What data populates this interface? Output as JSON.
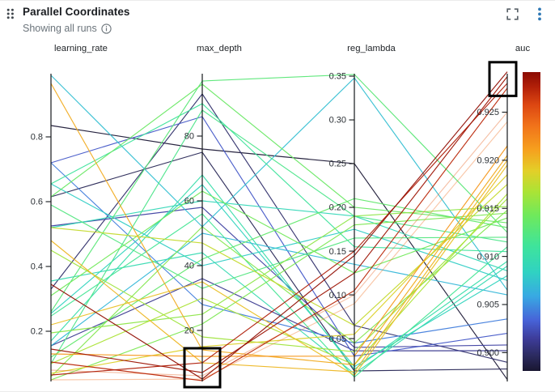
{
  "panel": {
    "title": "Parallel Coordinates",
    "subtitle": "Showing all runs",
    "menu_color": "#2e78b5",
    "icon_names": [
      "drag-handle-icon",
      "info-icon",
      "fullscreen-icon",
      "kebab-menu-icon"
    ]
  },
  "chart_data": {
    "type": "line",
    "variant": "parallel_coordinates",
    "title": "Parallel Coordinates",
    "subtitle": "Showing all runs",
    "grid": false,
    "legend": "color-bar-right",
    "axes": [
      {
        "name": "learning_rate",
        "domain": [
          0.045,
          0.995
        ],
        "ticks": [
          {
            "v": 0.8,
            "label": "0.8"
          },
          {
            "v": 0.6,
            "label": "0.6"
          },
          {
            "v": 0.4,
            "label": "0.4"
          },
          {
            "v": 0.2,
            "label": "0.2"
          }
        ]
      },
      {
        "name": "max_depth",
        "domain": [
          4.25,
          99.25
        ],
        "ticks": [
          {
            "v": 80,
            "label": "80"
          },
          {
            "v": 60,
            "label": "60"
          },
          {
            "v": 40,
            "label": "40"
          },
          {
            "v": 20,
            "label": "20"
          }
        ]
      },
      {
        "name": "reg_lambda",
        "domain": [
          0.001,
          0.3528
        ],
        "ticks": [
          {
            "v": 0.35,
            "label": "0.35"
          },
          {
            "v": 0.3,
            "label": "0.30"
          },
          {
            "v": 0.25,
            "label": "0.25"
          },
          {
            "v": 0.2,
            "label": "0.20"
          },
          {
            "v": 0.15,
            "label": "0.15"
          },
          {
            "v": 0.1,
            "label": "0.10"
          },
          {
            "v": 0.05,
            "label": "0.05"
          }
        ]
      },
      {
        "name": "auc",
        "domain": [
          0.897,
          0.929
        ],
        "ticks": [
          {
            "v": 0.925,
            "label": "0.925"
          },
          {
            "v": 0.92,
            "label": "0.920"
          },
          {
            "v": 0.915,
            "label": "0.915"
          },
          {
            "v": 0.91,
            "label": "0.910"
          },
          {
            "v": 0.905,
            "label": "0.905"
          },
          {
            "v": 0.9,
            "label": "0.900"
          }
        ]
      }
    ],
    "color_scale": {
      "by": "auc",
      "min": 0.897,
      "max": 0.9295,
      "stops": [
        {
          "t": 0.0,
          "c": "#191630"
        },
        {
          "t": 0.05,
          "c": "#2b2a5e"
        },
        {
          "t": 0.11,
          "c": "#3e3d9b"
        },
        {
          "t": 0.17,
          "c": "#4763d8"
        },
        {
          "t": 0.25,
          "c": "#38a9e3"
        },
        {
          "t": 0.33,
          "c": "#30d2c2"
        },
        {
          "t": 0.42,
          "c": "#3fe49a"
        },
        {
          "t": 0.52,
          "c": "#6fe95c"
        },
        {
          "t": 0.6,
          "c": "#abe335"
        },
        {
          "t": 0.67,
          "c": "#e3cf28"
        },
        {
          "t": 0.74,
          "c": "#f6a01e"
        },
        {
          "t": 0.82,
          "c": "#f1731a"
        },
        {
          "t": 0.89,
          "c": "#dd4712"
        },
        {
          "t": 0.95,
          "c": "#b22008"
        },
        {
          "t": 1.0,
          "c": "#8a0b03"
        }
      ]
    },
    "brushes": [
      {
        "axis": "max_depth",
        "range": [
          2.5,
          14.5
        ]
      },
      {
        "axis": "auc",
        "range": [
          0.9267,
          0.9302
        ]
      }
    ],
    "runs": [
      {
        "learning_rate": 0.345,
        "max_depth": 5,
        "reg_lambda": 0.145,
        "auc": 0.9292
      },
      {
        "learning_rate": 0.145,
        "max_depth": 7,
        "reg_lambda": 0.125,
        "auc": 0.9287
      },
      {
        "learning_rate": 0.065,
        "max_depth": 10,
        "reg_lambda": 0.15,
        "auc": 0.928
      },
      {
        "learning_rate": 0.105,
        "max_depth": 4.5,
        "reg_lambda": 0.105,
        "auc": 0.9275
      },
      {
        "learning_rate": 0.08,
        "max_depth": 6,
        "reg_lambda": 0.1,
        "auc": 0.925,
        "muted": true
      },
      {
        "learning_rate": 0.05,
        "max_depth": 5,
        "reg_lambda": 0.09,
        "auc": 0.924,
        "muted": true
      },
      {
        "learning_rate": 0.965,
        "max_depth": 14,
        "reg_lambda": 0.02,
        "auc": 0.9205
      },
      {
        "learning_rate": 0.13,
        "max_depth": 12,
        "reg_lambda": 0.03,
        "auc": 0.9215
      },
      {
        "learning_rate": 0.22,
        "max_depth": 35,
        "reg_lambda": 0.008,
        "auc": 0.9195
      },
      {
        "learning_rate": 0.07,
        "max_depth": 15,
        "reg_lambda": 0.055,
        "auc": 0.9185
      },
      {
        "learning_rate": 0.48,
        "max_depth": 10,
        "reg_lambda": 0.012,
        "auc": 0.92
      },
      {
        "learning_rate": 0.52,
        "max_depth": 47,
        "reg_lambda": 0.065,
        "auc": 0.9175
      },
      {
        "learning_rate": 0.1,
        "max_depth": 30,
        "reg_lambda": 0.02,
        "auc": 0.9165
      },
      {
        "learning_rate": 0.195,
        "max_depth": 25,
        "reg_lambda": 0.19,
        "auc": 0.9152
      },
      {
        "learning_rate": 0.45,
        "max_depth": 18,
        "reg_lambda": 0.035,
        "auc": 0.916
      },
      {
        "learning_rate": 0.06,
        "max_depth": 52,
        "reg_lambda": 0.045,
        "auc": 0.9148
      },
      {
        "learning_rate": 0.26,
        "max_depth": 97,
        "reg_lambda": 0.352,
        "auc": 0.9125
      },
      {
        "learning_rate": 0.615,
        "max_depth": 96,
        "reg_lambda": 0.2,
        "auc": 0.9135
      },
      {
        "learning_rate": 0.655,
        "max_depth": 90,
        "reg_lambda": 0.155,
        "auc": 0.9105
      },
      {
        "learning_rate": 0.1,
        "max_depth": 88,
        "reg_lambda": 0.19,
        "auc": 0.9115
      },
      {
        "learning_rate": 0.31,
        "max_depth": 63,
        "reg_lambda": 0.125,
        "auc": 0.914
      },
      {
        "learning_rate": 0.12,
        "max_depth": 42,
        "reg_lambda": 0.21,
        "auc": 0.913
      },
      {
        "learning_rate": 0.59,
        "max_depth": 33,
        "reg_lambda": 0.165,
        "auc": 0.912
      },
      {
        "learning_rate": 0.247,
        "max_depth": 56,
        "reg_lambda": 0.006,
        "auc": 0.911
      },
      {
        "learning_rate": 0.17,
        "max_depth": 68,
        "reg_lambda": 0.015,
        "auc": 0.9095
      },
      {
        "learning_rate": 0.05,
        "max_depth": 22,
        "reg_lambda": 0.18,
        "auc": 0.9145
      },
      {
        "learning_rate": 0.355,
        "max_depth": 44,
        "reg_lambda": 0.01,
        "auc": 0.909
      },
      {
        "learning_rate": 0.52,
        "max_depth": 60,
        "reg_lambda": 0.19,
        "auc": 0.9085
      },
      {
        "learning_rate": 0.655,
        "max_depth": 40,
        "reg_lambda": 0.175,
        "auc": 0.9075
      },
      {
        "learning_rate": 0.155,
        "max_depth": 50,
        "reg_lambda": 0.135,
        "auc": 0.906
      },
      {
        "learning_rate": 0.255,
        "max_depth": 65,
        "reg_lambda": 0.018,
        "auc": 0.908
      },
      {
        "learning_rate": 0.99,
        "max_depth": 52,
        "reg_lambda": 0.348,
        "auc": 0.9065
      },
      {
        "learning_rate": 0.72,
        "max_depth": 28,
        "reg_lambda": 0.045,
        "auc": 0.9035
      },
      {
        "learning_rate": 0.72,
        "max_depth": 86,
        "reg_lambda": 0.03,
        "auc": 0.902
      },
      {
        "learning_rate": 0.525,
        "max_depth": 58,
        "reg_lambda": 0.04,
        "auc": 0.9008
      },
      {
        "learning_rate": 0.155,
        "max_depth": 36,
        "reg_lambda": 0.036,
        "auc": 0.9002
      },
      {
        "learning_rate": 0.33,
        "max_depth": 93,
        "reg_lambda": 0.065,
        "auc": 0.899
      },
      {
        "learning_rate": 0.615,
        "max_depth": 75,
        "reg_lambda": 0.013,
        "auc": 0.8983
      },
      {
        "learning_rate": 0.835,
        "max_depth": 76,
        "reg_lambda": 0.25,
        "auc": 0.8972
      }
    ]
  }
}
